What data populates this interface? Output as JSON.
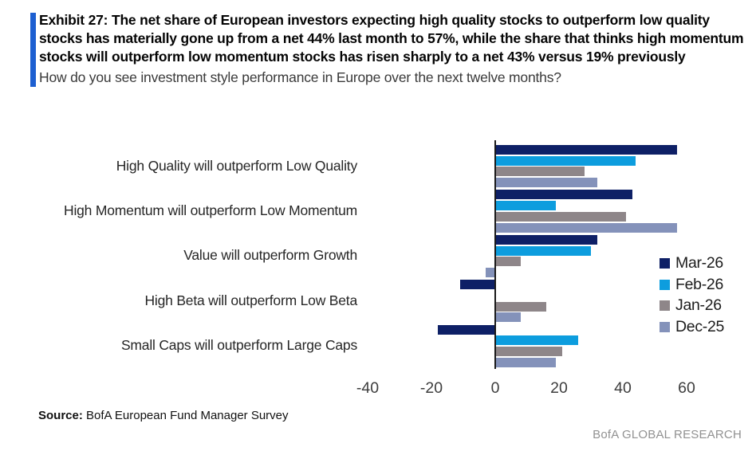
{
  "header": {
    "exhibit_title": "Exhibit 27: The net share of European investors expecting high quality stocks to outperform low quality stocks has materially gone up from a net 44% last month to 57%, while the share that thinks high momentum stocks will outperform low momentum stocks has risen sharply to a net 43% versus 19% previously",
    "subtitle": "How do you see investment style performance in Europe over the next twelve months?",
    "accent_color": "#1d5fd1"
  },
  "chart_data": {
    "type": "bar",
    "orientation": "horizontal",
    "title": "How do you see investment style performance in Europe over the next twelve months?",
    "categories": [
      "High Quality will outperform Low Quality",
      "High Momentum will outperform Low Momentum",
      "Value will outperform Growth",
      "High Beta will outperform Low Beta",
      "Small Caps will outperform Large Caps"
    ],
    "series": [
      {
        "name": "Mar-26",
        "color": "#0e2066",
        "values": [
          57,
          43,
          32,
          -11,
          -18
        ]
      },
      {
        "name": "Feb-26",
        "color": "#0d9dde",
        "values": [
          44,
          19,
          30,
          0,
          26
        ]
      },
      {
        "name": "Jan-26",
        "color": "#8e8689",
        "values": [
          28,
          41,
          8,
          16,
          21
        ]
      },
      {
        "name": "Dec-25",
        "color": "#8492ba",
        "values": [
          32,
          57,
          -3,
          8,
          19
        ]
      }
    ],
    "x_ticks": [
      -40,
      -20,
      0,
      20,
      40,
      60
    ],
    "xlim": [
      -45,
      78
    ],
    "grid": false,
    "legend_position": "inside-right",
    "axis_line_color": "#1a1a1a",
    "unit": "net % of investors"
  },
  "footer": {
    "source_label": "Source:",
    "source_text": " BofA European Fund Manager Survey",
    "brand": "BofA GLOBAL RESEARCH"
  }
}
